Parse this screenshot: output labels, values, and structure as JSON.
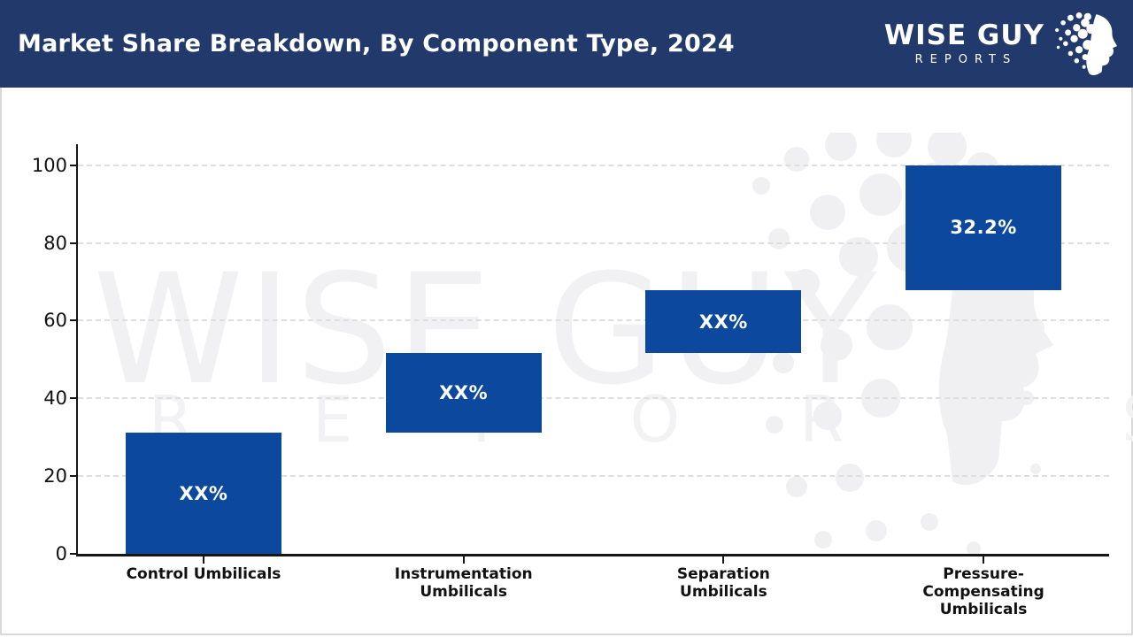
{
  "header": {
    "title": "Market Share Breakdown, By Component Type, 2024",
    "logo": {
      "brand": "WISE GUY",
      "sub": "REPORTS"
    }
  },
  "watermark": {
    "brand": "WISE GUY",
    "sub": "R E P O R T S"
  },
  "chart_data": {
    "type": "bar",
    "subtype": "waterfall",
    "title": "Market Share Breakdown, By Component Type, 2024",
    "xlabel": "",
    "ylabel": "",
    "ylim": [
      0,
      105
    ],
    "yticks": [
      0,
      20,
      40,
      60,
      80,
      100
    ],
    "grid": true,
    "legend": false,
    "categories": [
      "Control Umbilicals",
      "Instrumentation Umbilicals",
      "Separation Umbilicals",
      "Pressure-Compensating Umbilicals"
    ],
    "categories_lines": [
      [
        "Control Umbilicals"
      ],
      [
        "Instrumentation",
        "Umbilicals"
      ],
      [
        "Separation",
        "Umbilicals"
      ],
      [
        "Pressure-",
        "Compensating",
        "Umbilicals"
      ]
    ],
    "segments": [
      {
        "category": "Control Umbilicals",
        "start": 0,
        "end": 31.1,
        "label": "XX%"
      },
      {
        "category": "Instrumentation Umbilicals",
        "start": 31.1,
        "end": 51.6,
        "label": "XX%"
      },
      {
        "category": "Separation Umbilicals",
        "start": 51.6,
        "end": 67.8,
        "label": "XX%"
      },
      {
        "category": "Pressure-Compensating Umbilicals",
        "start": 67.8,
        "end": 100,
        "label": "32.2%"
      }
    ],
    "bar_color": "#0c499e",
    "bar_label_color": "#ffffff"
  },
  "colors": {
    "header_bg": "#22396b",
    "axis": "#161616",
    "grid": "#dedede",
    "text": "#111111",
    "watermark": "#f1f1f4"
  }
}
